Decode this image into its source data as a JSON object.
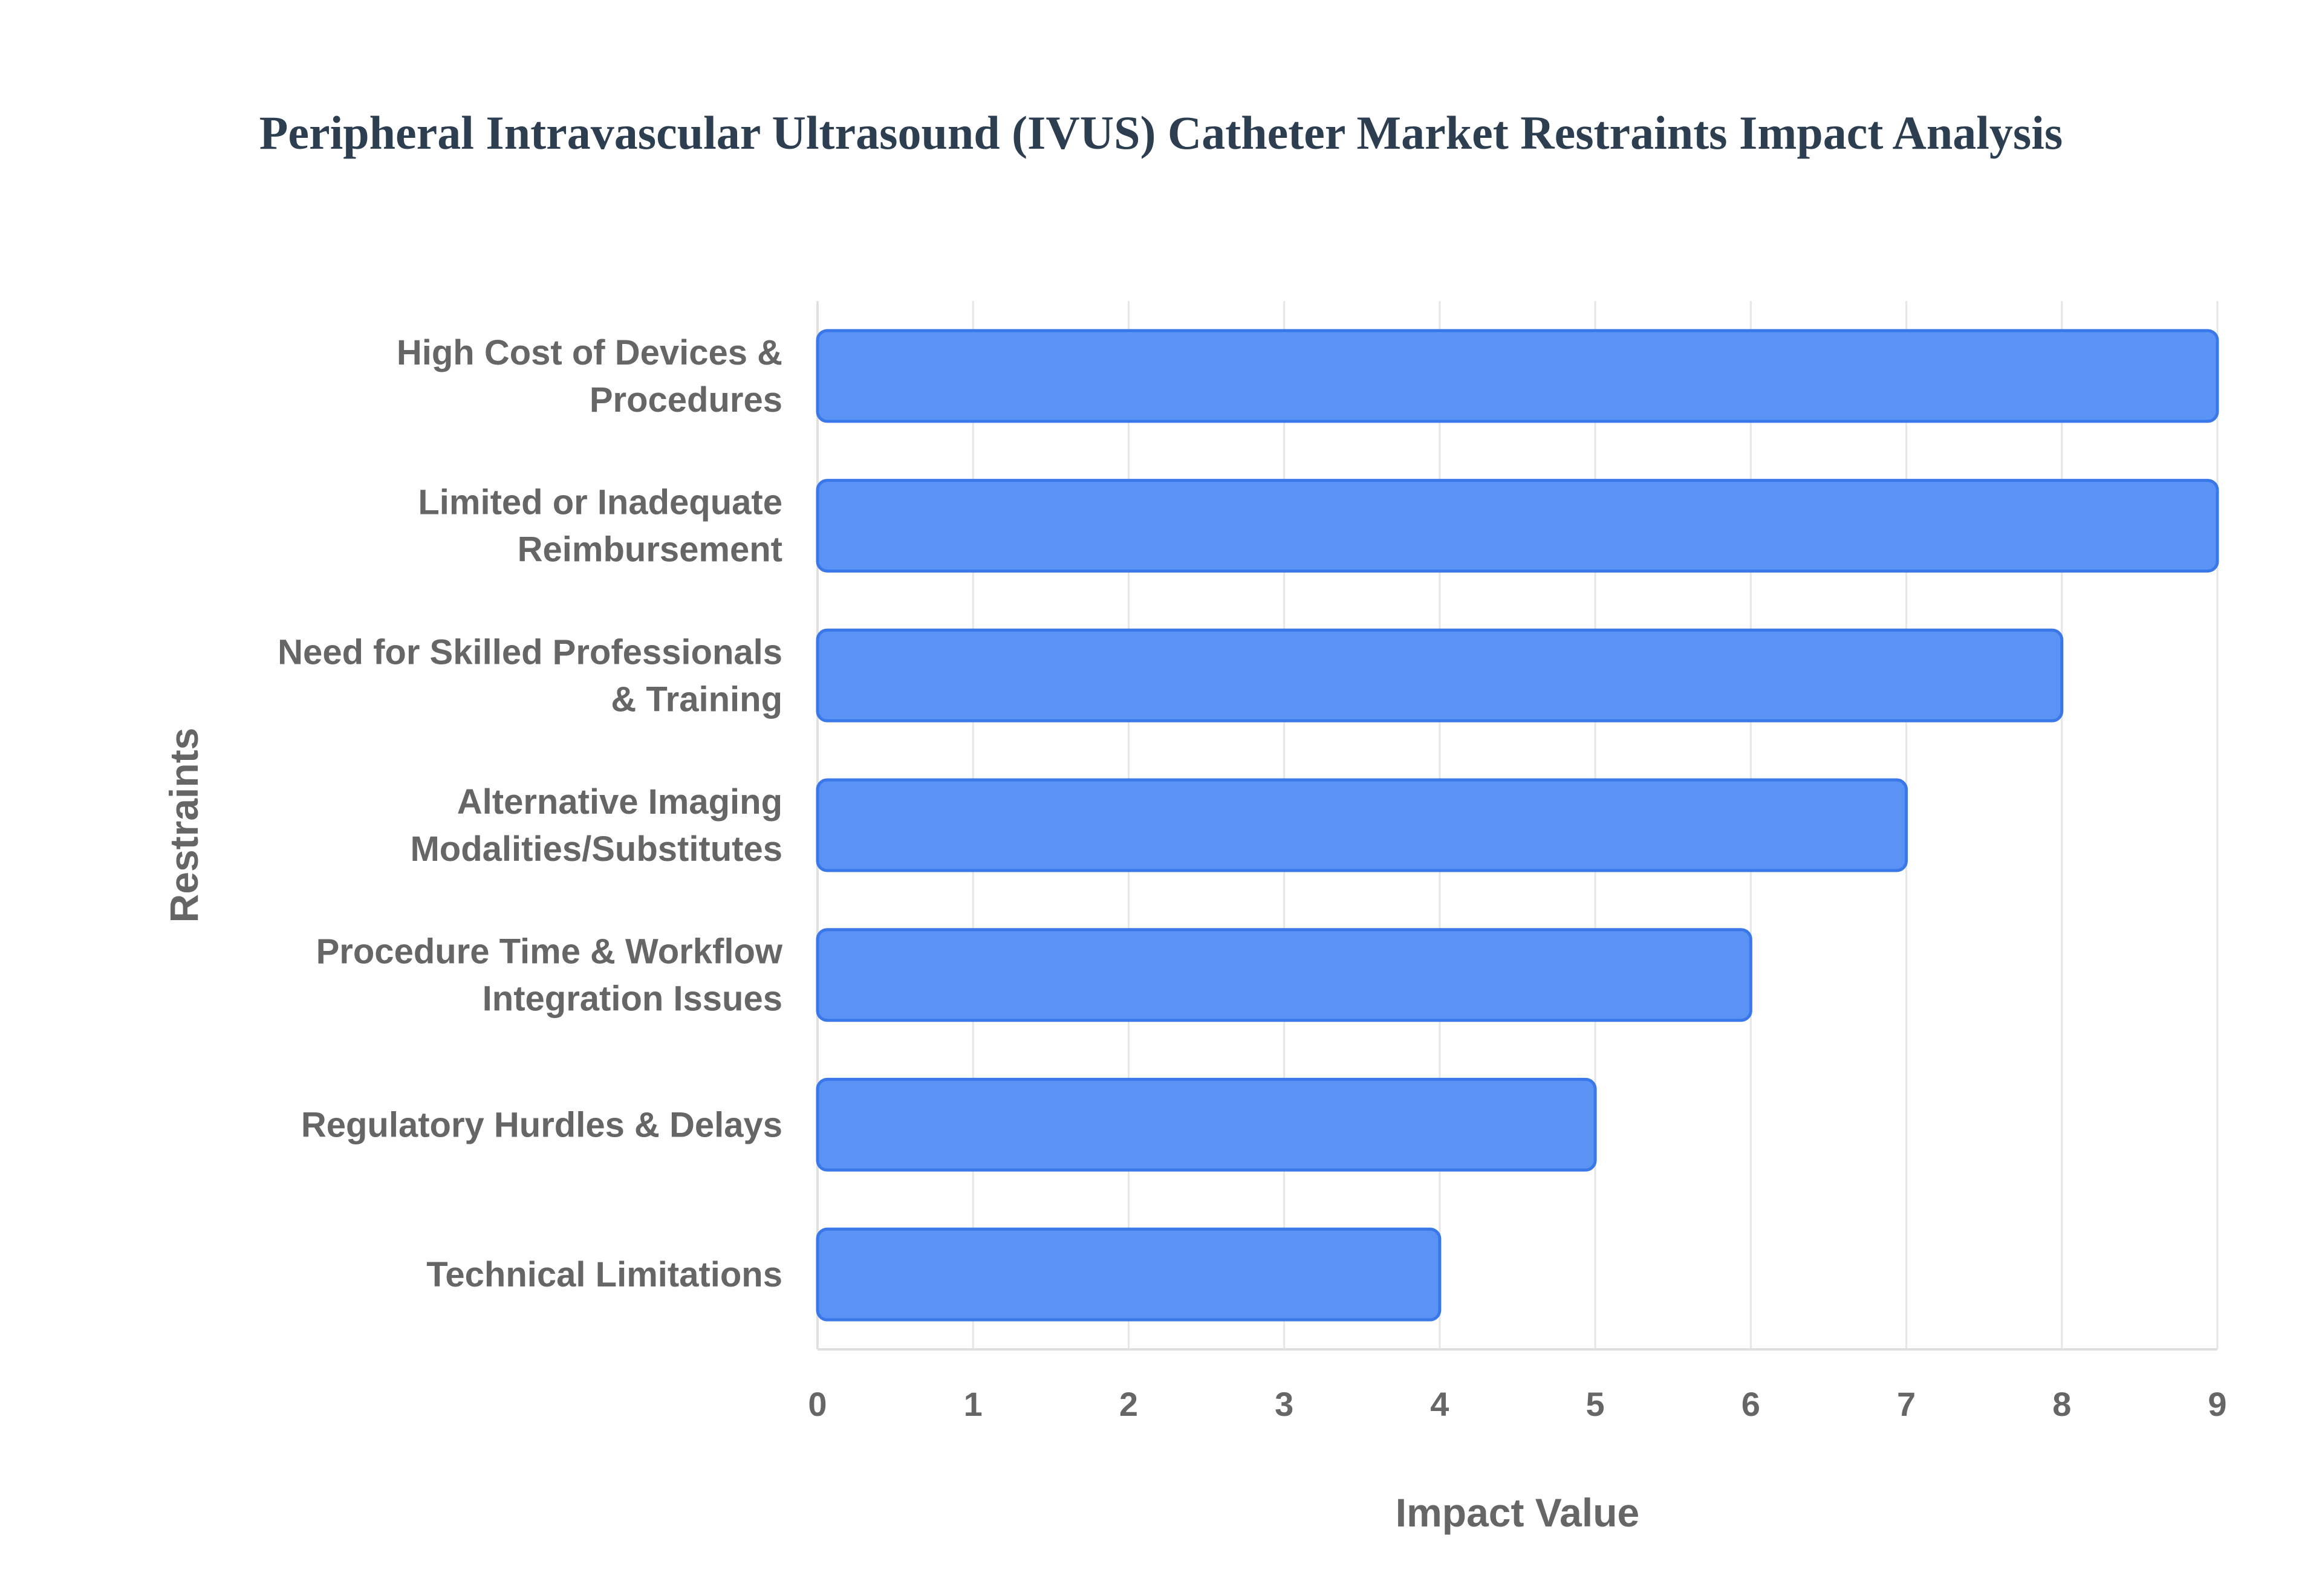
{
  "chart_data": {
    "type": "bar",
    "orientation": "horizontal",
    "title": "Peripheral Intravascular Ultrasound (IVUS) Catheter Market Restraints Impact Analysis",
    "xlabel": "Impact Value",
    "ylabel": "Restraints",
    "categories": [
      [
        "High Cost of Devices &",
        "Procedures"
      ],
      [
        "Limited or Inadequate",
        "Reimbursement"
      ],
      [
        "Need for Skilled Professionals",
        "& Training"
      ],
      [
        "Alternative Imaging",
        "Modalities/Substitutes"
      ],
      [
        "Procedure Time & Workflow",
        "Integration Issues"
      ],
      [
        "Regulatory Hurdles & Delays"
      ],
      [
        "Technical Limitations"
      ]
    ],
    "values": [
      9,
      9,
      8,
      7,
      6,
      5,
      4
    ],
    "xlim": [
      0,
      9
    ],
    "xticks": [
      0,
      1,
      2,
      3,
      4,
      5,
      6,
      7,
      8,
      9
    ],
    "grid": true,
    "legend": "none",
    "colors": {
      "bar_fill": "#5b93f5",
      "bar_stroke": "#3a78ea",
      "grid": "#e6e6e6",
      "axis": "#e0e0e0",
      "text": "#666666",
      "title": "#2c3e50"
    }
  }
}
